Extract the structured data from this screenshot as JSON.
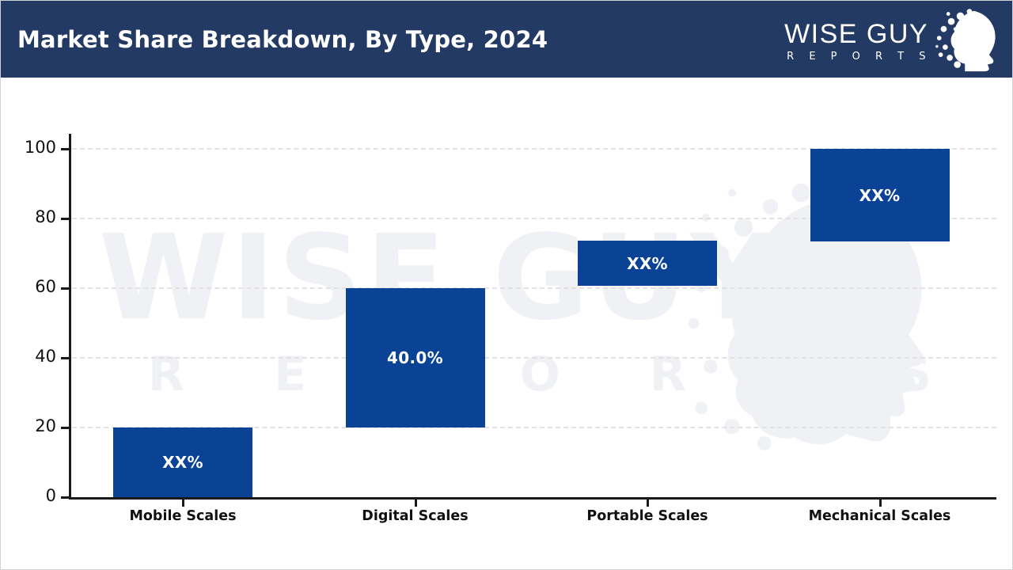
{
  "header": {
    "title": "Market Share Breakdown, By Type, 2024",
    "bg_color": "#233a64",
    "logo": {
      "wordmark": "WISE GUY",
      "subtitle": "R E P O R T S"
    }
  },
  "watermark": {
    "line1": "WISE GUY",
    "line2": "R E P O R T S"
  },
  "chart_data": {
    "type": "bar",
    "subtype": "floating-waterfall",
    "title": "Market Share Breakdown, By Type, 2024",
    "xlabel": "",
    "ylabel": "",
    "ylim": [
      0,
      105
    ],
    "yticks": [
      0,
      20,
      40,
      60,
      80,
      100
    ],
    "grid": "horizontal-dashed",
    "legend": "none",
    "bar_color": "#0a4296",
    "bar_label_color": "#ffffff",
    "categories": [
      "Mobile Scales",
      "Digital Scales",
      "Portable Scales",
      "Mechanical Scales"
    ],
    "bars": [
      {
        "category": "Mobile Scales",
        "start": 0,
        "end": 20,
        "label": "XX%"
      },
      {
        "category": "Digital Scales",
        "start": 20,
        "end": 60,
        "label": "40.0%"
      },
      {
        "category": "Portable Scales",
        "start": 60.7,
        "end": 73.6,
        "label": "XX%"
      },
      {
        "category": "Mechanical Scales",
        "start": 73.4,
        "end": 100,
        "label": "XX%"
      }
    ]
  }
}
